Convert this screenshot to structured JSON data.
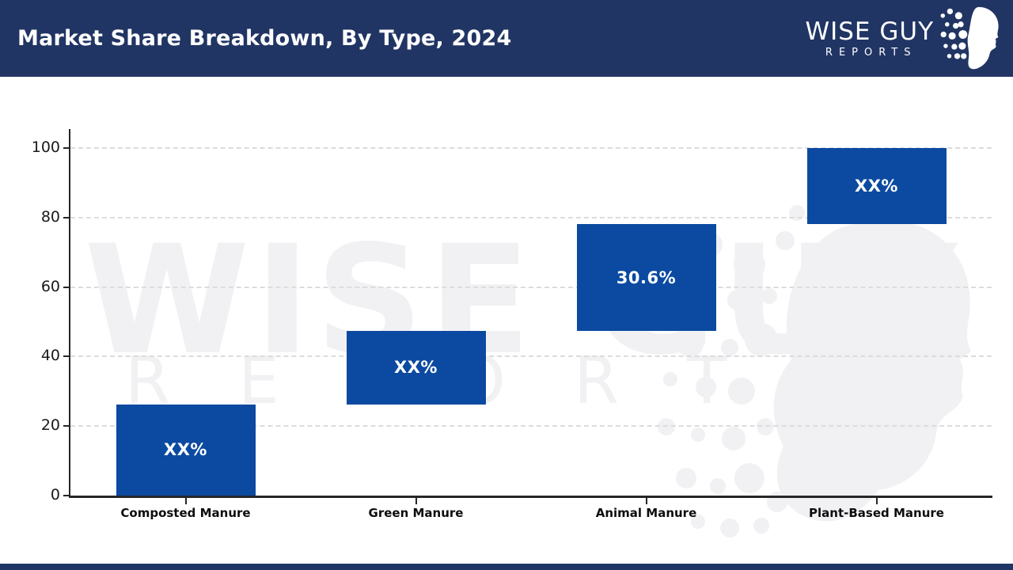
{
  "header": {
    "title": "Market Share Breakdown, By Type, 2024",
    "logo": {
      "line1": "WISE GUY",
      "line2": "REPORTS"
    }
  },
  "watermark": {
    "line1": "WISE GUY",
    "line2": "R E P O R T S"
  },
  "colors": {
    "header_bg": "#213564",
    "footer_bg": "#213564",
    "bar_fill": "#0b4aa0",
    "bar_label_text": "#ffffff",
    "grid_line": "#dcdcdc",
    "axis_line": "#262626",
    "watermark": "#f1f1f4"
  },
  "chart_data": {
    "type": "bar",
    "subtype": "floating-waterfall",
    "title": "Market Share Breakdown, By Type, 2024",
    "categories": [
      "Composted Manure",
      "Green Manure",
      "Animal Manure",
      "Plant-Based Manure"
    ],
    "segments": [
      {
        "start": 0,
        "end": 26.3
      },
      {
        "start": 26.3,
        "end": 47.4
      },
      {
        "start": 47.4,
        "end": 78.1
      },
      {
        "start": 78.1,
        "end": 100
      }
    ],
    "values_pct": [
      26.3,
      21.1,
      30.6,
      21.9
    ],
    "bar_labels": [
      "XX%",
      "XX%",
      "30.6%",
      "XX%"
    ],
    "xlabel": "",
    "ylabel": "",
    "ylim": [
      0,
      105.5
    ],
    "yticks": [
      0,
      20,
      40,
      60,
      80,
      100
    ],
    "grid": "horizontal-dashed",
    "legend": "none"
  }
}
